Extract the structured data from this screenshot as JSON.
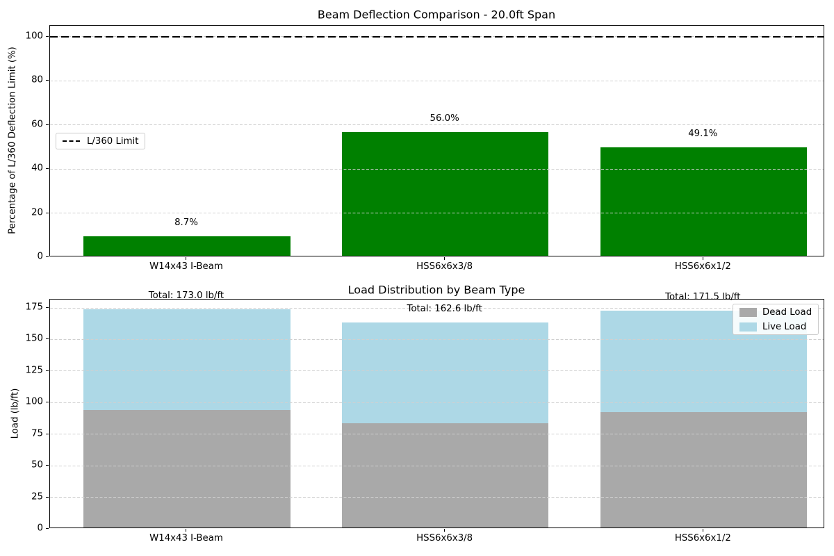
{
  "colors": {
    "background": "#ffffff",
    "axes_edge": "#000000",
    "grid": "#d0d0d0",
    "text": "#000000",
    "bar_green": "#008000",
    "dead_load_gray": "#a9a9a9",
    "live_load_blue": "#add8e6"
  },
  "chart_data": [
    {
      "type": "bar",
      "title": "Beam Deflection Comparison - 20.0ft Span",
      "ylabel": "Percentage of L/360 Deflection Limit (%)",
      "xlabel": "",
      "categories": [
        "W14x43 I-Beam",
        "HSS6x6x3/8",
        "HSS6x6x1/2"
      ],
      "values": [
        8.7,
        56.0,
        49.1
      ],
      "bar_labels": [
        "8.7%",
        "56.0%",
        "49.1%"
      ],
      "bar_color": "#008000",
      "ylim": [
        0,
        105
      ],
      "yticks": [
        0,
        20,
        40,
        60,
        80,
        100
      ],
      "grid": true,
      "limit_line": {
        "value": 100,
        "style": "dashed",
        "color": "#000000",
        "label": "L/360 Limit"
      },
      "legend": {
        "position": "center left",
        "items": [
          {
            "label": "L/360 Limit",
            "swatch": "dashed-line",
            "color": "#000000"
          }
        ]
      }
    },
    {
      "type": "stacked-bar",
      "title": "Load Distribution by Beam Type",
      "ylabel": "Load (lb/ft)",
      "xlabel": "",
      "categories": [
        "W14x43 I-Beam",
        "HSS6x6x3/8",
        "HSS6x6x1/2"
      ],
      "series": [
        {
          "name": "Dead Load",
          "color": "#a9a9a9",
          "values": [
            93.0,
            82.6,
            91.5
          ]
        },
        {
          "name": "Live Load",
          "color": "#add8e6",
          "values": [
            80.0,
            80.0,
            80.0
          ]
        }
      ],
      "totals": [
        173.0,
        162.6,
        171.5
      ],
      "total_labels": [
        "Total: 173.0 lb/ft",
        "Total: 162.6 lb/ft",
        "Total: 171.5 lb/ft"
      ],
      "ylim": [
        0,
        181.65
      ],
      "yticks": [
        0,
        25,
        50,
        75,
        100,
        125,
        150,
        175
      ],
      "grid": true,
      "legend": {
        "position": "upper right",
        "items": [
          {
            "label": "Dead Load",
            "swatch": "patch",
            "color": "#a9a9a9"
          },
          {
            "label": "Live Load",
            "swatch": "patch",
            "color": "#add8e6"
          }
        ]
      }
    }
  ]
}
